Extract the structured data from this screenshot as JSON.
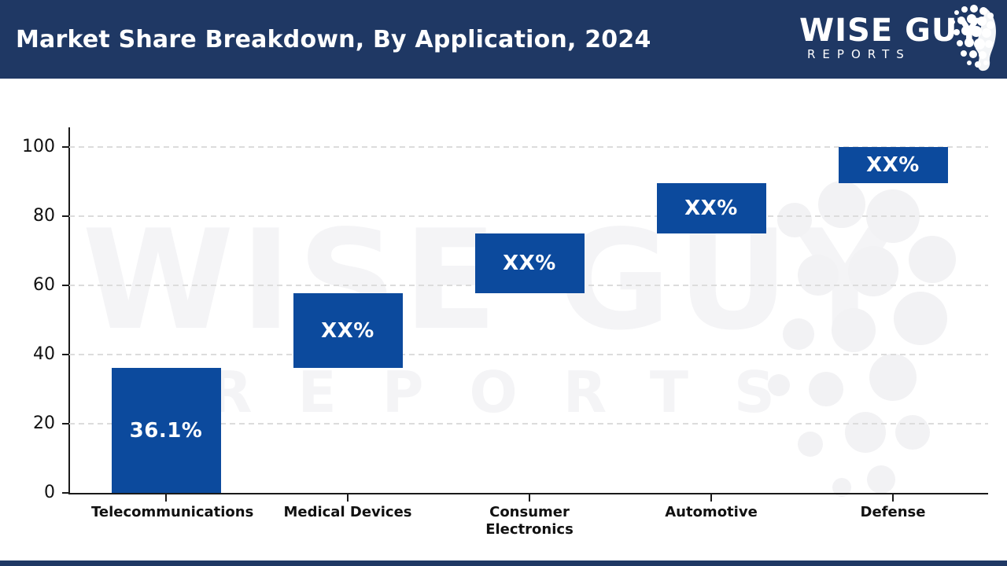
{
  "header": {
    "title": "Market Share Breakdown, By Application, 2024",
    "logo": {
      "line1": "WISE GUY",
      "line2": "REPORTS"
    }
  },
  "watermark": {
    "line1": "WISE GUY",
    "line2": "REPORTS"
  },
  "colors": {
    "header_bg": "#1f3864",
    "header_text": "#ffffff",
    "bar": "#0c4a9d",
    "bar_label_text": "#ffffff",
    "axis": "#1a1a1a",
    "grid": "#dcdcdc",
    "watermark": "#f4f4f6"
  },
  "chart_data": {
    "type": "bar",
    "subtype": "waterfall",
    "title": "Market Share Breakdown, By Application, 2024",
    "categories": [
      "Telecommunications",
      "Medical Devices",
      "Consumer Electronics",
      "Automotive",
      "Defense"
    ],
    "segments": [
      {
        "category": "Telecommunications",
        "start": 0,
        "end": 36.1,
        "label": "36.1%"
      },
      {
        "category": "Medical Devices",
        "start": 36.1,
        "end": 57.7,
        "label": "XX%"
      },
      {
        "category": "Consumer Electronics",
        "start": 57.7,
        "end": 75.0,
        "label": "XX%"
      },
      {
        "category": "Automotive",
        "start": 75.0,
        "end": 89.5,
        "label": "XX%"
      },
      {
        "category": "Defense",
        "start": 89.5,
        "end": 100.0,
        "label": "XX%"
      }
    ],
    "ylabel": "",
    "xlabel": "",
    "ylim": [
      0,
      100
    ],
    "yticks": [
      0,
      20,
      40,
      60,
      80,
      100
    ],
    "grid": "horizontal-dashed",
    "legend": "none",
    "bar_color": "#0c4a9d"
  }
}
